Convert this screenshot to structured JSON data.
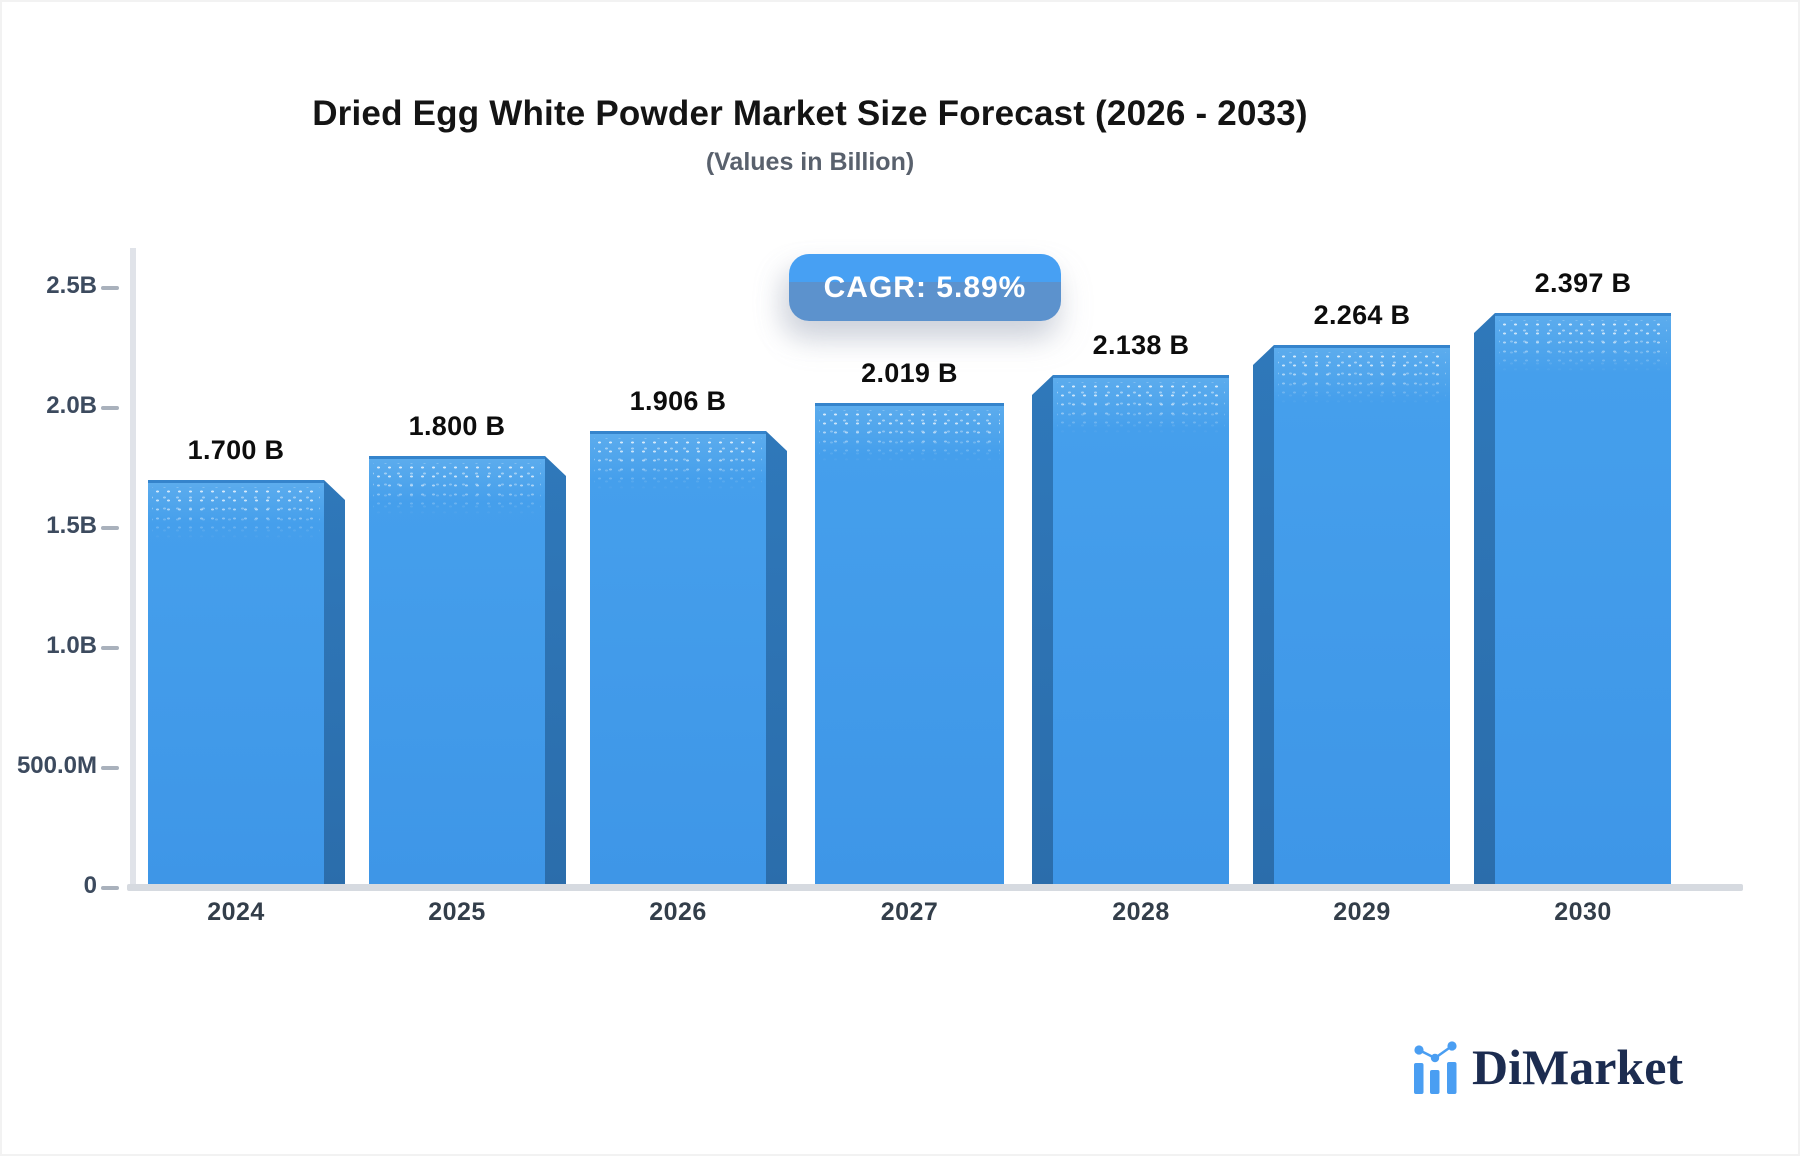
{
  "title": "Dried Egg White Powder Market Size Forecast (2026 - 2033)",
  "subtitle": "(Values in Billion)",
  "badge": {
    "label": "CAGR: 5.89%",
    "color_top": "#47a0f3",
    "color_bottom": "#5c92cd"
  },
  "logo": {
    "name": "DiMarket",
    "icon": "mini-bar-chart-icon",
    "text_color": "#1c2c50",
    "icon_color": "#4a9ef2"
  },
  "chart_data": {
    "type": "bar",
    "title": "Dried Egg White Powder Market Size Forecast (2026 - 2033)",
    "subtitle": "(Values in Billion)",
    "unit": "Billion",
    "categories": [
      "2024",
      "2025",
      "2026",
      "2027",
      "2028",
      "2029",
      "2030"
    ],
    "values": [
      1.7,
      1.8,
      1.906,
      2.019,
      2.138,
      2.264,
      2.397
    ],
    "value_labels": [
      "1.700 B",
      "1.800 B",
      "1.906 B",
      "2.019 B",
      "2.138 B",
      "2.264 B",
      "2.397 B"
    ],
    "y_ticks": [
      {
        "label": "0",
        "value": 0
      },
      {
        "label": "500.0M",
        "value": 0.5
      },
      {
        "label": "1.0B",
        "value": 1.0
      },
      {
        "label": "1.5B",
        "value": 1.5
      },
      {
        "label": "2.0B",
        "value": 2.0
      },
      {
        "label": "2.5B",
        "value": 2.5
      }
    ],
    "ylim": [
      0,
      2.5
    ],
    "xlabel": "",
    "ylabel": "",
    "grid": false,
    "legend": null,
    "annotations": [
      {
        "text": "CAGR: 5.89%"
      }
    ],
    "colors": {
      "bar_fill_top": "#5caced",
      "bar_fill": "#459fec",
      "bar_fill_bottom": "#3e96e7",
      "bar_side": "#2f78ba",
      "bar_side_dark": "#2b6dab",
      "axis": "#d6dae0"
    }
  }
}
